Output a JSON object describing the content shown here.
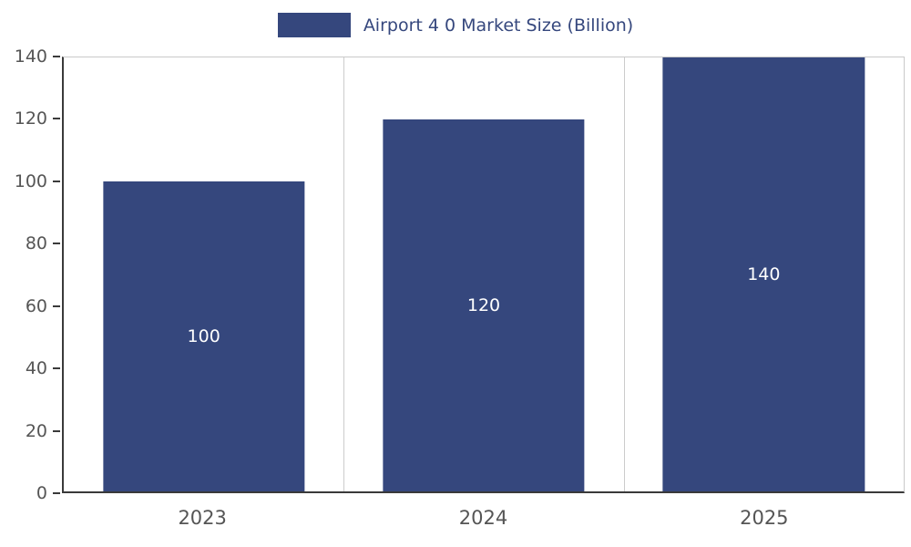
{
  "chart_data": {
    "type": "bar",
    "title": "",
    "legend_label": "Airport 4 0 Market Size (Billion)",
    "legend_position": "top",
    "categories": [
      "2023",
      "2024",
      "2025"
    ],
    "values": [
      100,
      120,
      140
    ],
    "value_labels": [
      "100",
      "120",
      "140"
    ],
    "xlabel": "",
    "ylabel": "",
    "ylim": [
      0,
      140
    ],
    "yticks": [
      0,
      20,
      40,
      60,
      80,
      100,
      120,
      140
    ],
    "grid": "vertical-category-separators-only",
    "bar_color": "#35477d",
    "value_label_color": "#ffffff",
    "tick_label_color": "#555555"
  }
}
